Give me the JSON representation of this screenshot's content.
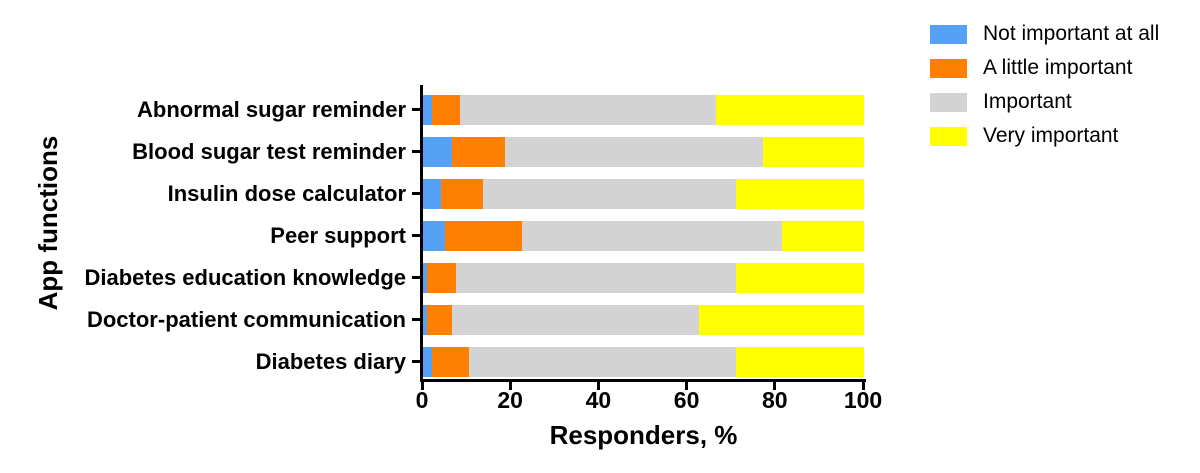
{
  "chart_data": {
    "type": "bar",
    "orientation": "horizontal",
    "stacked": true,
    "title": "",
    "xlabel": "Responders, %",
    "ylabel": "App functions",
    "xlim": [
      0,
      100
    ],
    "x_ticks": [
      0,
      20,
      40,
      60,
      80,
      100
    ],
    "grid": false,
    "legend_position": "top-right",
    "categories": [
      "Abnormal sugar reminder",
      "Blood sugar test reminder",
      "Insulin dose calculator",
      "Peer support",
      "Diabetes education knowledge",
      "Doctor-patient communication",
      "Diabetes diary"
    ],
    "series": [
      {
        "name": "Not important at all",
        "color": "#55A1F5",
        "values": [
          2,
          6.5,
          4,
          5,
          1,
          1,
          2
        ]
      },
      {
        "name": "A little important",
        "color": "#FF8000",
        "values": [
          6.5,
          12,
          9.5,
          17.5,
          6.5,
          5.5,
          8.5
        ]
      },
      {
        "name": "Important",
        "color": "#D3D3D3",
        "values": [
          58,
          58.5,
          57.5,
          59,
          63.5,
          56,
          60.5
        ]
      },
      {
        "name": "Very important",
        "color": "#FFFF00",
        "values": [
          33.5,
          23,
          29,
          18.5,
          29,
          37.5,
          29
        ]
      }
    ],
    "colors": {
      "axis": "#000000",
      "background": "#ffffff",
      "text": "#000000"
    }
  }
}
